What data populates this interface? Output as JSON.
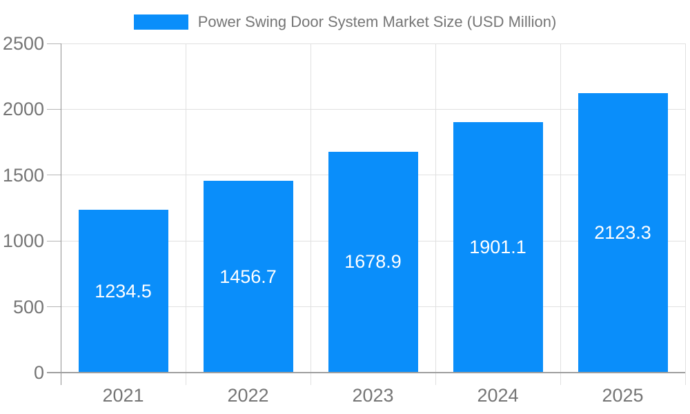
{
  "legend": {
    "label": "Power Swing Door System Market Size (USD Million)"
  },
  "chart_data": {
    "type": "bar",
    "title": "Power Swing Door System Market Size (USD Million)",
    "categories": [
      "2021",
      "2022",
      "2023",
      "2024",
      "2025"
    ],
    "values": [
      1234.5,
      1456.7,
      1678.9,
      1901.1,
      2123.3
    ],
    "value_labels": [
      "1234.5",
      "1456.7",
      "1678.9",
      "1901.1",
      "2123.3"
    ],
    "xlabel": "",
    "ylabel": "",
    "ylim": [
      0,
      2500
    ],
    "yticks": [
      0,
      500,
      1000,
      1500,
      2000,
      2500
    ],
    "ytick_labels": [
      "0",
      "500",
      "1000",
      "1500",
      "2000",
      "2500"
    ],
    "grid": true,
    "legend_position": "top",
    "bar_color": "#0a8efa",
    "bar_label_color": "#ffffff",
    "axis_text_color": "#757575",
    "grid_color": "#e0e0e0",
    "axis_line_color": "#9e9e9e"
  }
}
